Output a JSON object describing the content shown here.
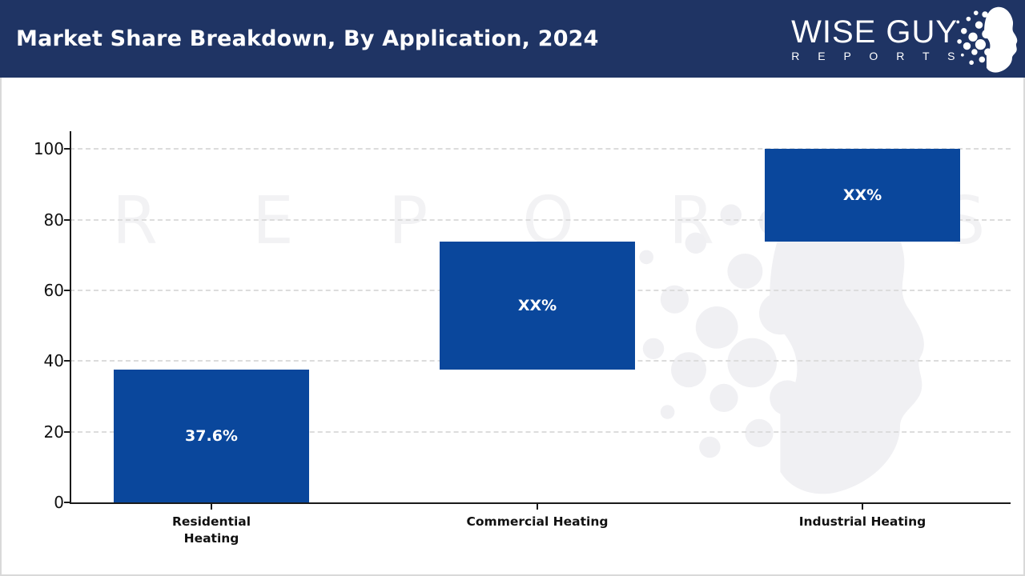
{
  "header": {
    "title": "Market Share Breakdown, By Application, 2024",
    "background_color": "#1f3464",
    "logo": {
      "line1": "WISE GUY",
      "line2": "R E P O R T S",
      "icon": "dotted-head-profile-icon"
    }
  },
  "watermark": {
    "line1": "WISE GUY",
    "line2": "R E P O R T S",
    "icon": "dotted-head-profile-icon",
    "color": "#f2f2f4"
  },
  "chart_data": {
    "type": "bar",
    "subtype": "stacked-waterfall-percentage",
    "title": "Market Share Breakdown, By Application, 2024",
    "categories": [
      "Residential\nHeating",
      "Commercial Heating",
      "Industrial Heating"
    ],
    "bars": [
      {
        "category": "Residential Heating",
        "label": "37.6%",
        "start": 0,
        "end": 37.6,
        "value": 37.6
      },
      {
        "category": "Commercial Heating",
        "label": "XX%",
        "start": 37.6,
        "end": 73.8,
        "value_estimated": 36.2
      },
      {
        "category": "Industrial Heating",
        "label": "XX%",
        "start": 73.8,
        "end": 100,
        "value_estimated": 26.2
      }
    ],
    "bar_color": "#0a479c",
    "bar_label_color": "#ffffff",
    "y_ticks": [
      0,
      20,
      40,
      60,
      80,
      100
    ],
    "ylim": [
      0,
      105
    ],
    "xlabel": "",
    "ylabel": "",
    "grid": "horizontal dashed",
    "grid_color": "#dcdcdc",
    "legend": "none"
  }
}
